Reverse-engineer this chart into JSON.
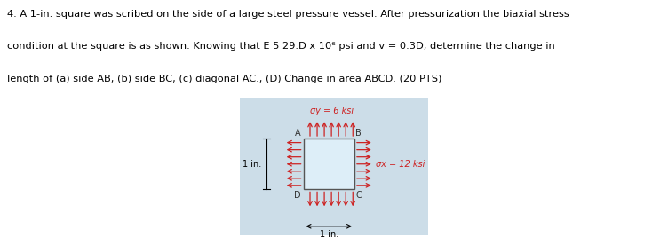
{
  "title_line1": "4. A 1-in. square was scribed on the side of a large steel pressure vessel. After pressurization the biaxial stress",
  "title_line2": "condition at the square is as shown. Knowing that E 5 29.D x 10⁶ psi and v = 0.3D, determine the change in",
  "title_line3": "length of (a) side AB, (b) side BC, (c) diagonal AC., (D) Change in area ABCD. (20 PTS)",
  "bg_color": "#ccdde8",
  "square_color": "#ddeef8",
  "square_edge_color": "#555555",
  "arrow_color": "#cc2222",
  "text_color": "#cc2222",
  "label_color": "#333333",
  "sigma_y_label": "σy = 6 ksi",
  "sigma_x_label": "σx = 12 ksi",
  "dim_label_x": "1 in.",
  "dim_label_y": "1 in.",
  "fig_width": 7.52,
  "fig_height": 2.68
}
